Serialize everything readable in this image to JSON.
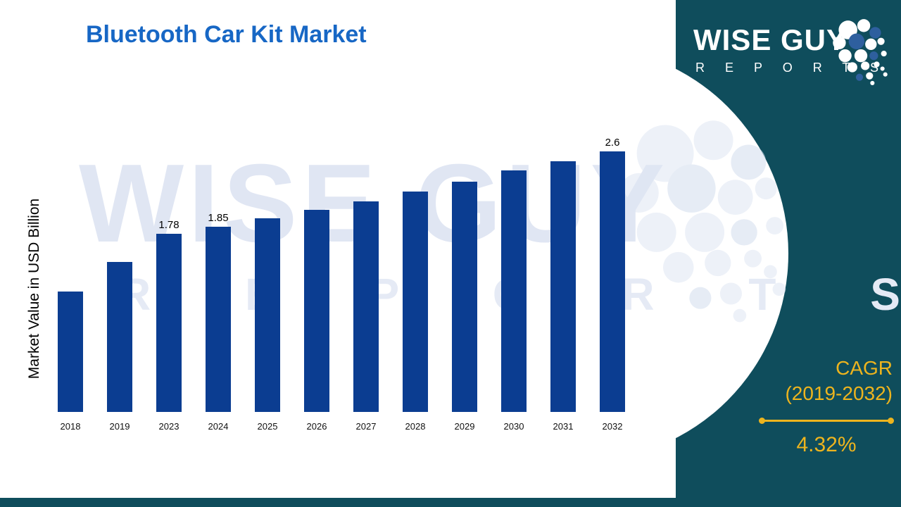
{
  "header": {
    "title": "Bluetooth Car Kit Market"
  },
  "brand": {
    "logo_line1": "WISE GUY",
    "logo_line2": "R E P O R T S",
    "panel_color": "#0f4d5c",
    "accent_gold": "#edb41e",
    "head_icon": "wiseguy-dotted-head"
  },
  "watermark": {
    "line1": "WISE GUY",
    "line2": "R E P O R T S"
  },
  "cagr": {
    "label": "CAGR",
    "range": "(2019-2032)",
    "value": "4.32%"
  },
  "chart_data": {
    "type": "bar",
    "title": "Bluetooth Car Kit Market",
    "xlabel": "",
    "ylabel": "Market Value in USD Billion",
    "categories": [
      "2018",
      "2019",
      "2023",
      "2024",
      "2025",
      "2026",
      "2027",
      "2028",
      "2029",
      "2030",
      "2031",
      "2032"
    ],
    "values": [
      1.2,
      1.5,
      1.78,
      1.85,
      1.93,
      2.02,
      2.1,
      2.2,
      2.3,
      2.41,
      2.5,
      2.6
    ],
    "point_labels": [
      "",
      "",
      "1.78",
      "1.85",
      "",
      "",
      "",
      "",
      "",
      "",
      "",
      "2.6"
    ],
    "bar_color": "#0b3d91",
    "title_color": "#1767c5",
    "ylim": [
      0,
      2.6
    ],
    "grid": false,
    "legend": false
  }
}
